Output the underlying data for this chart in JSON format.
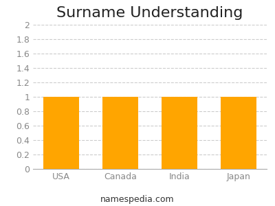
{
  "title": "Surname Understanding",
  "categories": [
    "USA",
    "Canada",
    "India",
    "Japan"
  ],
  "values": [
    1.0,
    1.0,
    1.0,
    1.0
  ],
  "bar_color": "#FFA500",
  "ylim": [
    0,
    2
  ],
  "yticks": [
    0,
    0.2,
    0.4,
    0.6,
    0.8,
    1.0,
    1.2,
    1.4,
    1.6,
    1.8,
    2.0
  ],
  "ytick_labels": [
    "0",
    "0.2",
    "0.4",
    "0.6",
    "0.8",
    "1",
    "1.2",
    "1.4",
    "1.6",
    "1.8",
    "2"
  ],
  "grid_color": "#cccccc",
  "title_fontsize": 16,
  "tick_fontsize": 9,
  "footer_text": "namespedia.com",
  "footer_fontsize": 9,
  "background_color": "#ffffff",
  "bar_width": 0.6,
  "bar_edge_color": "none",
  "spine_color": "#aaaaaa",
  "tick_color": "#888888",
  "title_color": "#222222",
  "footer_color": "#333333"
}
